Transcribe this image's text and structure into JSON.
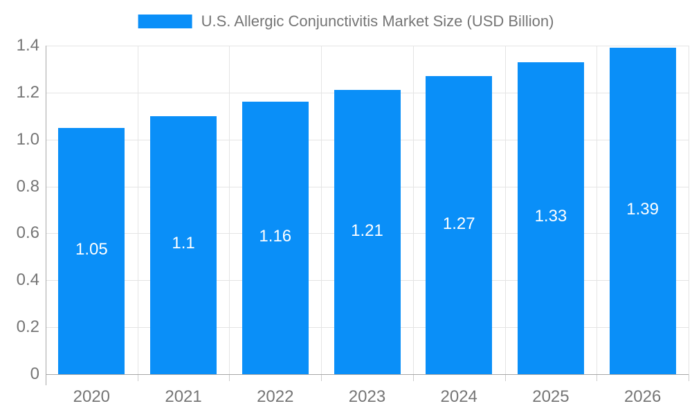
{
  "legend": {
    "label": "U.S. Allergic Conjunctivitis Market Size (USD Billion)"
  },
  "chart_data": {
    "type": "bar",
    "title": "U.S. Allergic Conjunctivitis Market Size (USD Billion)",
    "categories": [
      "2020",
      "2021",
      "2022",
      "2023",
      "2024",
      "2025",
      "2026"
    ],
    "series": [
      {
        "name": "U.S. Allergic Conjunctivitis Market Size (USD Billion)",
        "color": "#0A8FF8",
        "values": [
          1.05,
          1.1,
          1.16,
          1.21,
          1.27,
          1.33,
          1.39
        ],
        "value_labels": [
          "1.05",
          "1.1",
          "1.16",
          "1.21",
          "1.27",
          "1.33",
          "1.39"
        ]
      }
    ],
    "xlabel": "",
    "ylabel": "",
    "ylim": [
      0,
      1.4
    ],
    "yticks": [
      {
        "value": 0,
        "label": "0"
      },
      {
        "value": 0.2,
        "label": "0.2"
      },
      {
        "value": 0.4,
        "label": "0.4"
      },
      {
        "value": 0.6,
        "label": "0.6"
      },
      {
        "value": 0.8,
        "label": "0.8"
      },
      {
        "value": 1.0,
        "label": "1.0"
      },
      {
        "value": 1.2,
        "label": "1.2"
      },
      {
        "value": 1.4,
        "label": "1.4"
      }
    ],
    "grid": true,
    "legend_position": "top",
    "colors": {
      "bar": "#0A8FF8",
      "tick_label": "#757575",
      "legend_text": "#757575",
      "value_label": "#ffffff",
      "gridline": "#e4e4e4",
      "axis_line": "#a6a6a6",
      "tick_mark": "#cccccc",
      "background": "#ffffff"
    }
  }
}
